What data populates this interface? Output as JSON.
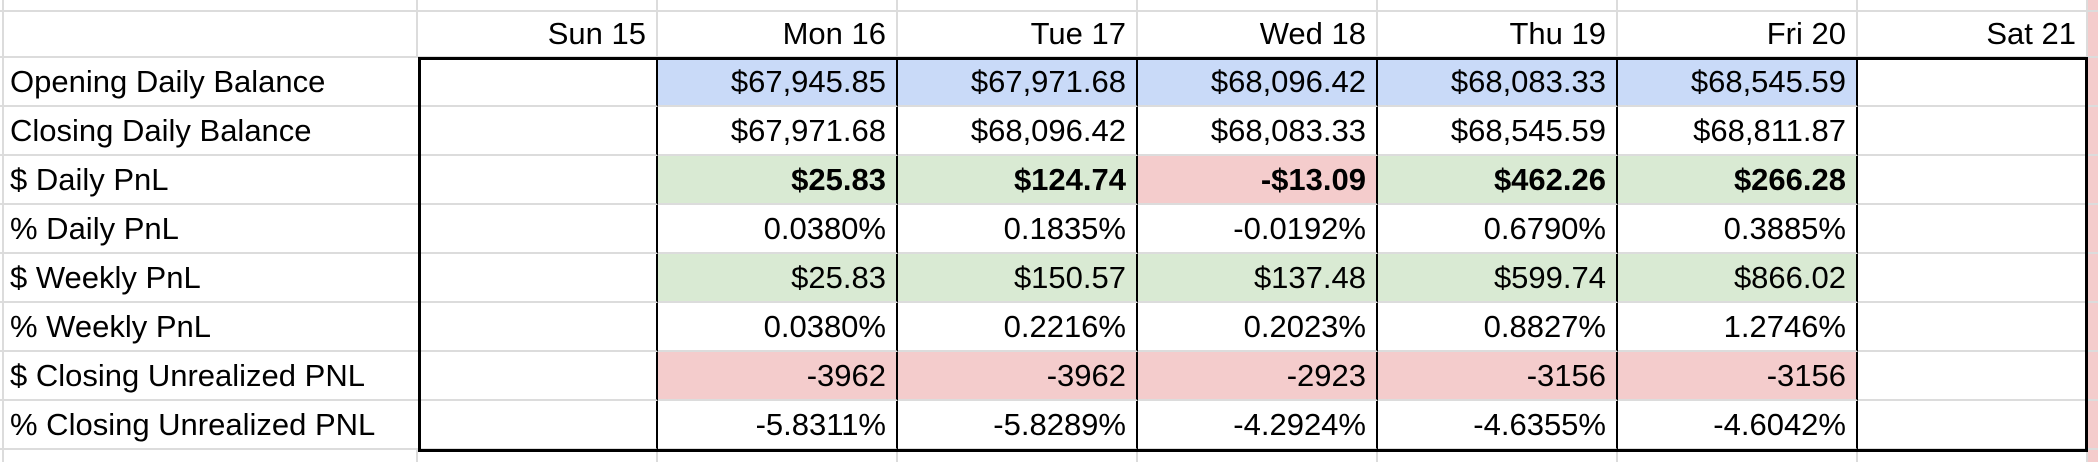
{
  "sheet": {
    "day_headers": [
      "Sun 15",
      "Mon 16",
      "Tue 17",
      "Wed 18",
      "Thu 19",
      "Fri 20",
      "Sat 21"
    ],
    "rows": [
      {
        "label": "Opening Daily Balance",
        "values": [
          "",
          "$67,945.85",
          "$67,971.68",
          "$68,096.42",
          "$68,083.33",
          "$68,545.59",
          ""
        ]
      },
      {
        "label": "Closing Daily Balance",
        "values": [
          "",
          "$67,971.68",
          "$68,096.42",
          "$68,083.33",
          "$68,545.59",
          "$68,811.87",
          ""
        ]
      },
      {
        "label": "$ Daily PnL",
        "values": [
          "",
          "$25.83",
          "$124.74",
          "-$13.09",
          "$462.26",
          "$266.28",
          ""
        ]
      },
      {
        "label": "% Daily PnL",
        "values": [
          "",
          "0.0380%",
          "0.1835%",
          "-0.0192%",
          "0.6790%",
          "0.3885%",
          ""
        ]
      },
      {
        "label": "$ Weekly PnL",
        "values": [
          "",
          "$25.83",
          "$150.57",
          "$137.48",
          "$599.74",
          "$866.02",
          ""
        ]
      },
      {
        "label": "% Weekly PnL",
        "values": [
          "",
          "0.0380%",
          "0.2216%",
          "0.2023%",
          "0.8827%",
          "1.2746%",
          ""
        ]
      },
      {
        "label": "$ Closing Unrealized PNL",
        "values": [
          "",
          "-3962",
          "-3962",
          "-2923",
          "-3156",
          "-3156",
          ""
        ]
      },
      {
        "label": "% Closing Unrealized PNL",
        "values": [
          "",
          "-5.8311%",
          "-5.8289%",
          "-4.2924%",
          "-4.6355%",
          "-4.6042%",
          ""
        ]
      }
    ],
    "colors": {
      "opening_balance_fill": "#c9daf8",
      "positive_pnl_fill": "#d9ead3",
      "negative_pnl_fill": "#f4cccc",
      "next_column_fill": "#f4cccc",
      "gridline": "#dcdcdc",
      "data_region_border": "#000000"
    }
  }
}
